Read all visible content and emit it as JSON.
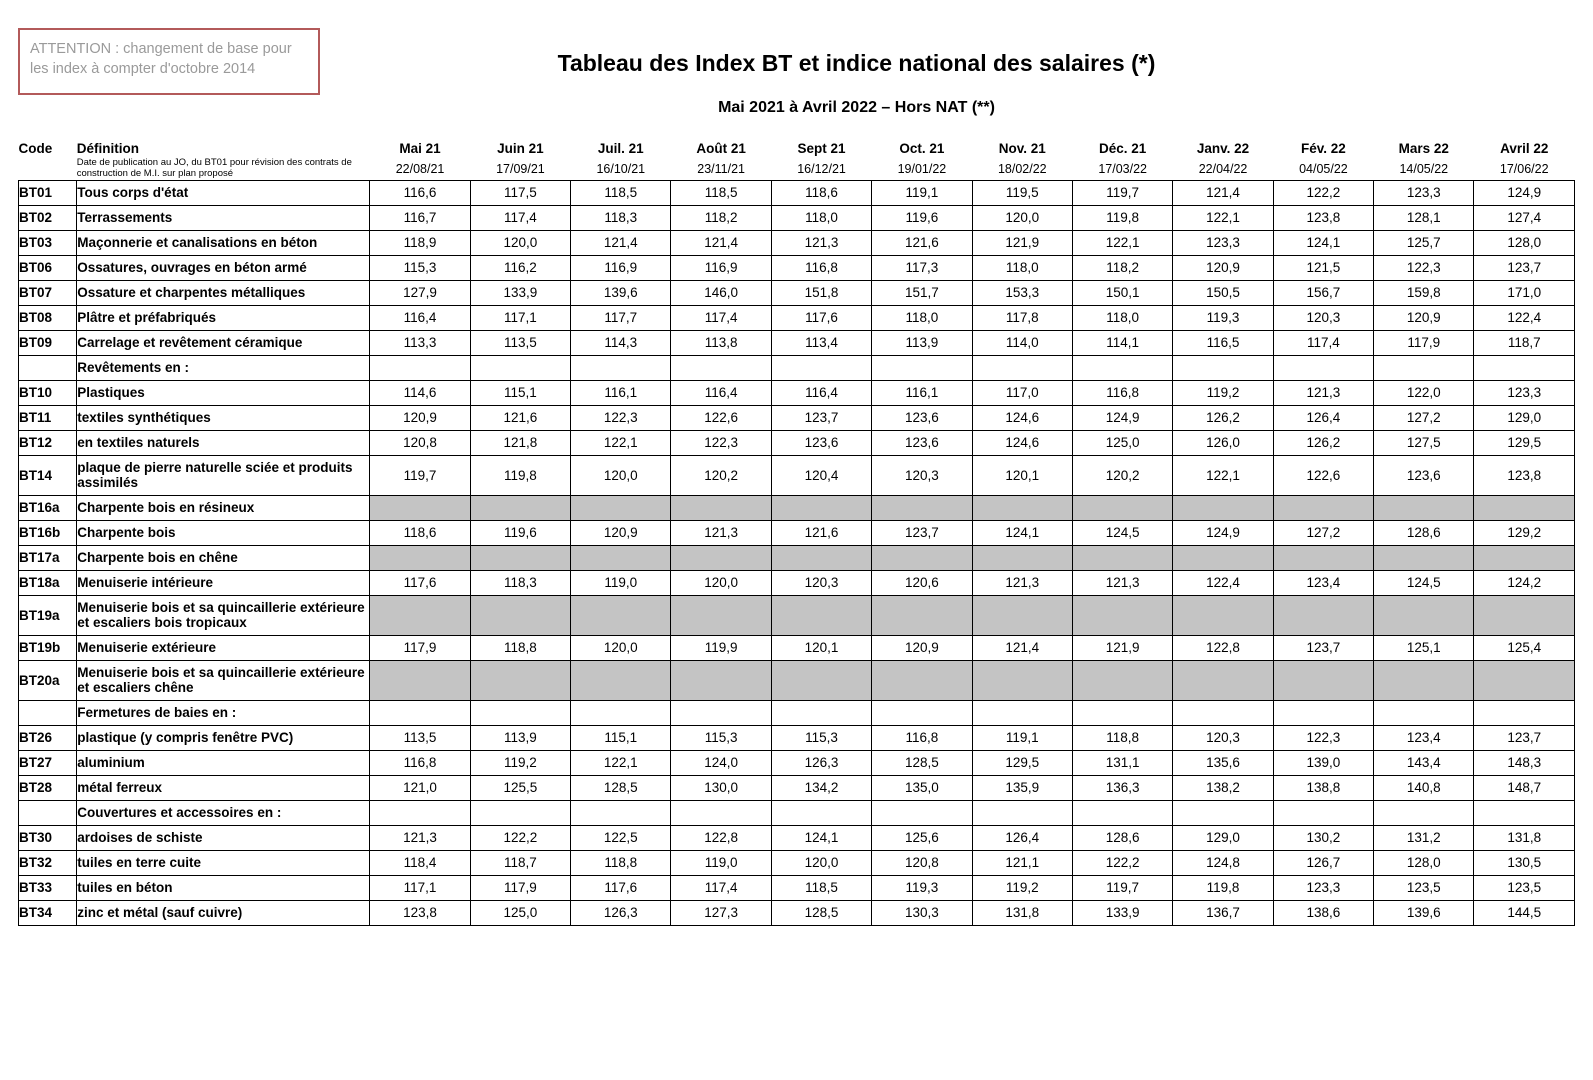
{
  "attention_box": "ATTENTION : changement de base pour les index à compter d'octobre 2014",
  "title": "Tableau des Index BT et indice national des salaires (*)",
  "subtitle": "Mai 2021 à Avril 2022 – Hors NAT (**)",
  "header": {
    "code": "Code",
    "def": "Définition",
    "def_sub": "Date de publication au JO, du BT01 pour révision des contrats de construction de M.I. sur plan proposé",
    "months": [
      {
        "label": "Mai 21",
        "date": "22/08/21"
      },
      {
        "label": "Juin 21",
        "date": "17/09/21"
      },
      {
        "label": "Juil. 21",
        "date": "16/10/21"
      },
      {
        "label": "Août 21",
        "date": "23/11/21"
      },
      {
        "label": "Sept 21",
        "date": "16/12/21"
      },
      {
        "label": "Oct. 21",
        "date": "19/01/22"
      },
      {
        "label": "Nov. 21",
        "date": "18/02/22"
      },
      {
        "label": "Déc. 21",
        "date": "17/03/22"
      },
      {
        "label": "Janv. 22",
        "date": "22/04/22"
      },
      {
        "label": "Fév. 22",
        "date": "04/05/22"
      },
      {
        "label": "Mars 22",
        "date": "14/05/22"
      },
      {
        "label": "Avril 22",
        "date": "17/06/22"
      }
    ]
  },
  "rows": [
    {
      "code": "BT01",
      "def": "Tous corps d'état",
      "v": [
        "116,6",
        "117,5",
        "118,5",
        "118,5",
        "118,6",
        "119,1",
        "119,5",
        "119,7",
        "121,4",
        "122,2",
        "123,3",
        "124,9"
      ]
    },
    {
      "code": "BT02",
      "def": "Terrassements",
      "v": [
        "116,7",
        "117,4",
        "118,3",
        "118,2",
        "118,0",
        "119,6",
        "120,0",
        "119,8",
        "122,1",
        "123,8",
        "128,1",
        "127,4"
      ]
    },
    {
      "code": "BT03",
      "def": "Maçonnerie et canalisations en béton",
      "v": [
        "118,9",
        "120,0",
        "121,4",
        "121,4",
        "121,3",
        "121,6",
        "121,9",
        "122,1",
        "123,3",
        "124,1",
        "125,7",
        "128,0"
      ]
    },
    {
      "code": "BT06",
      "def": "Ossatures, ouvrages en béton armé",
      "v": [
        "115,3",
        "116,2",
        "116,9",
        "116,9",
        "116,8",
        "117,3",
        "118,0",
        "118,2",
        "120,9",
        "121,5",
        "122,3",
        "123,7"
      ]
    },
    {
      "code": "BT07",
      "def": "Ossature et charpentes métalliques",
      "v": [
        "127,9",
        "133,9",
        "139,6",
        "146,0",
        "151,8",
        "151,7",
        "153,3",
        "150,1",
        "150,5",
        "156,7",
        "159,8",
        "171,0"
      ]
    },
    {
      "code": "BT08",
      "def": "Plâtre et préfabriqués",
      "v": [
        "116,4",
        "117,1",
        "117,7",
        "117,4",
        "117,6",
        "118,0",
        "117,8",
        "118,0",
        "119,3",
        "120,3",
        "120,9",
        "122,4"
      ]
    },
    {
      "code": "BT09",
      "def": "Carrelage et revêtement céramique",
      "v": [
        "113,3",
        "113,5",
        "114,3",
        "113,8",
        "113,4",
        "113,9",
        "114,0",
        "114,1",
        "116,5",
        "117,4",
        "117,9",
        "118,7"
      ]
    },
    {
      "code": "",
      "def": "Revêtements en :",
      "v": [
        "",
        "",
        "",
        "",
        "",
        "",
        "",
        "",
        "",
        "",
        "",
        ""
      ]
    },
    {
      "code": "BT10",
      "def": "Plastiques",
      "v": [
        "114,6",
        "115,1",
        "116,1",
        "116,4",
        "116,4",
        "116,1",
        "117,0",
        "116,8",
        "119,2",
        "121,3",
        "122,0",
        "123,3"
      ]
    },
    {
      "code": "BT11",
      "def": "textiles synthétiques",
      "v": [
        "120,9",
        "121,6",
        "122,3",
        "122,6",
        "123,7",
        "123,6",
        "124,6",
        "124,9",
        "126,2",
        "126,4",
        "127,2",
        "129,0"
      ]
    },
    {
      "code": "BT12",
      "def": "en textiles naturels",
      "v": [
        "120,8",
        "121,8",
        "122,1",
        "122,3",
        "123,6",
        "123,6",
        "124,6",
        "125,0",
        "126,0",
        "126,2",
        "127,5",
        "129,5"
      ]
    },
    {
      "code": "BT14",
      "def": "plaque de pierre naturelle sciée et produits assimilés",
      "tall": true,
      "v": [
        "119,7",
        "119,8",
        "120,0",
        "120,2",
        "120,4",
        "120,3",
        "120,1",
        "120,2",
        "122,1",
        "122,6",
        "123,6",
        "123,8"
      ]
    },
    {
      "code": "BT16a",
      "def": "Charpente bois en résineux",
      "grey": true,
      "v": [
        "",
        "",
        "",
        "",
        "",
        "",
        "",
        "",
        "",
        "",
        "",
        ""
      ]
    },
    {
      "code": "BT16b",
      "def": "Charpente bois",
      "v": [
        "118,6",
        "119,6",
        "120,9",
        "121,3",
        "121,6",
        "123,7",
        "124,1",
        "124,5",
        "124,9",
        "127,2",
        "128,6",
        "129,2"
      ]
    },
    {
      "code": "BT17a",
      "def": "Charpente bois en chêne",
      "grey": true,
      "v": [
        "",
        "",
        "",
        "",
        "",
        "",
        "",
        "",
        "",
        "",
        "",
        ""
      ]
    },
    {
      "code": "BT18a",
      "def": "Menuiserie intérieure",
      "v": [
        "117,6",
        "118,3",
        "119,0",
        "120,0",
        "120,3",
        "120,6",
        "121,3",
        "121,3",
        "122,4",
        "123,4",
        "124,5",
        "124,2"
      ]
    },
    {
      "code": "BT19a",
      "def": "Menuiserie bois et sa quincaillerie extérieure et escaliers bois tropicaux",
      "tall": true,
      "grey": true,
      "v": [
        "",
        "",
        "",
        "",
        "",
        "",
        "",
        "",
        "",
        "",
        "",
        ""
      ]
    },
    {
      "code": "BT19b",
      "def": "Menuiserie extérieure",
      "v": [
        "117,9",
        "118,8",
        "120,0",
        "119,9",
        "120,1",
        "120,9",
        "121,4",
        "121,9",
        "122,8",
        "123,7",
        "125,1",
        "125,4"
      ]
    },
    {
      "code": "BT20a",
      "def": "Menuiserie bois et sa quincaillerie extérieure et escaliers chêne",
      "tall": true,
      "grey": true,
      "v": [
        "",
        "",
        "",
        "",
        "",
        "",
        "",
        "",
        "",
        "",
        "",
        ""
      ]
    },
    {
      "code": "",
      "def": "Fermetures de baies en :",
      "v": [
        "",
        "",
        "",
        "",
        "",
        "",
        "",
        "",
        "",
        "",
        "",
        ""
      ]
    },
    {
      "code": "BT26",
      "def": "plastique (y compris fenêtre PVC)",
      "v": [
        "113,5",
        "113,9",
        "115,1",
        "115,3",
        "115,3",
        "116,8",
        "119,1",
        "118,8",
        "120,3",
        "122,3",
        "123,4",
        "123,7"
      ]
    },
    {
      "code": "BT27",
      "def": "aluminium",
      "v": [
        "116,8",
        "119,2",
        "122,1",
        "124,0",
        "126,3",
        "128,5",
        "129,5",
        "131,1",
        "135,6",
        "139,0",
        "143,4",
        "148,3"
      ]
    },
    {
      "code": "BT28",
      "def": "métal ferreux",
      "v": [
        "121,0",
        "125,5",
        "128,5",
        "130,0",
        "134,2",
        "135,0",
        "135,9",
        "136,3",
        "138,2",
        "138,8",
        "140,8",
        "148,7"
      ]
    },
    {
      "code": "",
      "def": "Couvertures et accessoires en :",
      "v": [
        "",
        "",
        "",
        "",
        "",
        "",
        "",
        "",
        "",
        "",
        "",
        ""
      ]
    },
    {
      "code": "BT30",
      "def": "ardoises de schiste",
      "v": [
        "121,3",
        "122,2",
        "122,5",
        "122,8",
        "124,1",
        "125,6",
        "126,4",
        "128,6",
        "129,0",
        "130,2",
        "131,2",
        "131,8"
      ]
    },
    {
      "code": "BT32",
      "def": "tuiles en terre cuite",
      "v": [
        "118,4",
        "118,7",
        "118,8",
        "119,0",
        "120,0",
        "120,8",
        "121,1",
        "122,2",
        "124,8",
        "126,7",
        "128,0",
        "130,5"
      ]
    },
    {
      "code": "BT33",
      "def": "tuiles en béton",
      "v": [
        "117,1",
        "117,9",
        "117,6",
        "117,4",
        "118,5",
        "119,3",
        "119,2",
        "119,7",
        "119,8",
        "123,3",
        "123,5",
        "123,5"
      ]
    },
    {
      "code": "BT34",
      "def": "zinc et métal (sauf cuivre)",
      "v": [
        "123,8",
        "125,0",
        "126,3",
        "127,3",
        "128,5",
        "130,3",
        "131,8",
        "133,9",
        "136,7",
        "138,6",
        "139,6",
        "144,5"
      ]
    }
  ],
  "style": {
    "border_color": "#000000",
    "grey_fill": "#c4c4c4",
    "attention_border": "#b35a5a",
    "attention_text": "#9a9a9a",
    "font_family": "Verdana, Arial, sans-serif",
    "title_fontsize_pt": 17,
    "body_fontsize_pt": 10
  }
}
